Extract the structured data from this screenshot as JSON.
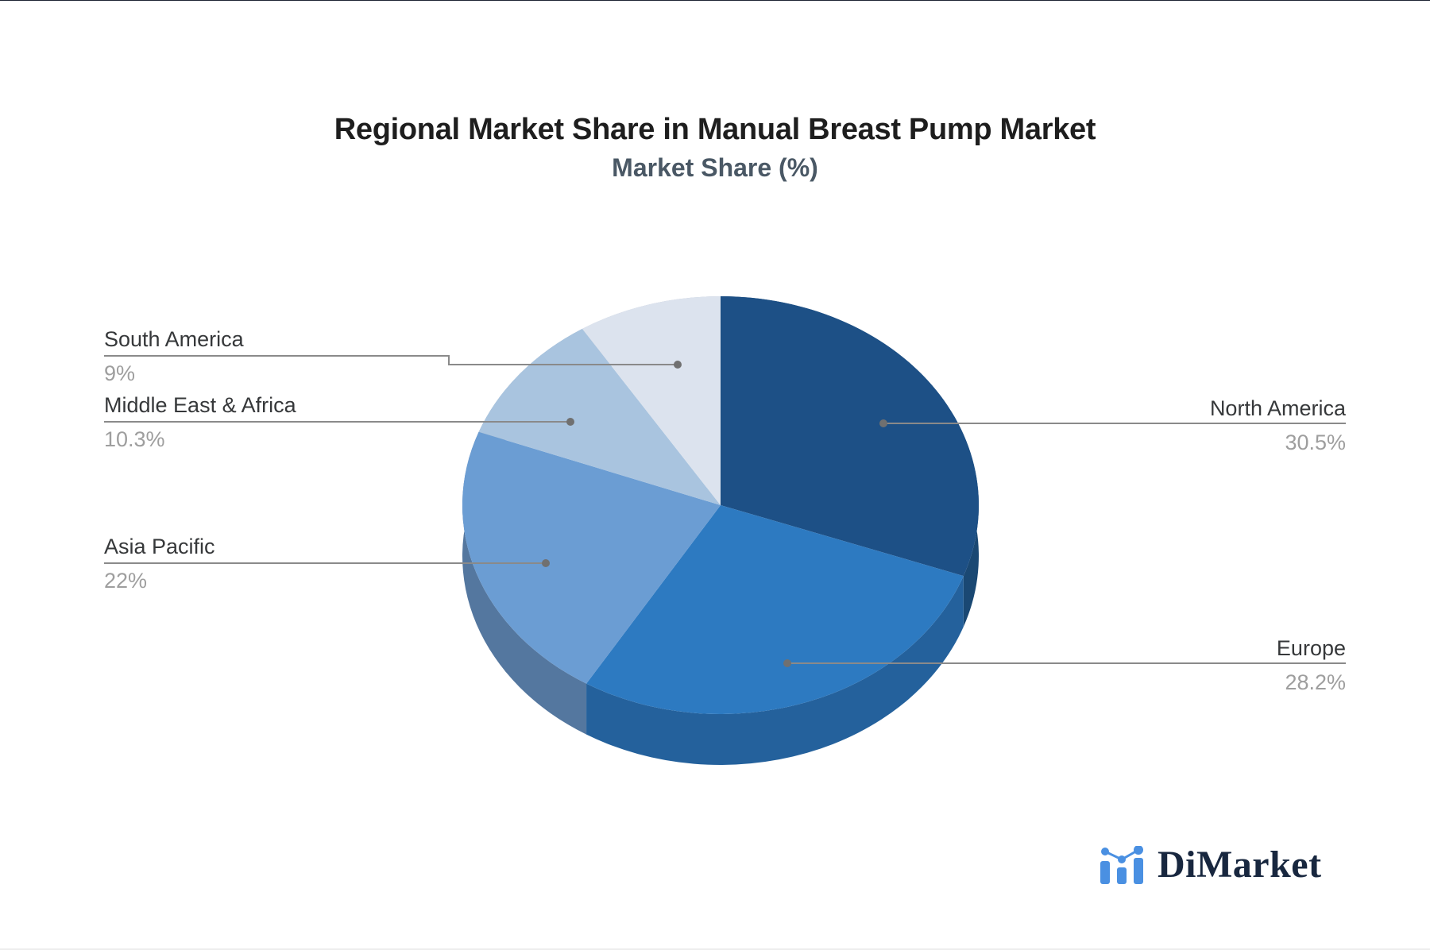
{
  "header": {
    "title": "Regional Market Share in Manual Breast Pump Market",
    "subtitle": "Market Share (%)"
  },
  "chart_data": {
    "type": "pie",
    "style": "3d",
    "title": "Regional Market Share in Manual Breast Pump Market",
    "subtitle": "Market Share (%)",
    "unit": "%",
    "start_angle_deg": 0,
    "direction": "clockwise",
    "legend_position": "none",
    "labels_layout": "leader-lines",
    "slices": [
      {
        "label": "North America",
        "value": 30.5,
        "display": "30.5%",
        "color": "#1d5086",
        "side_color": "#1a4873"
      },
      {
        "label": "Europe",
        "value": 28.2,
        "display": "28.2%",
        "color": "#2d7ac1",
        "side_color": "#24619c"
      },
      {
        "label": "Asia Pacific",
        "value": 22,
        "display": "22%",
        "color": "#6b9dd3",
        "side_color": "#54779f"
      },
      {
        "label": "Middle East & Africa",
        "value": 10.3,
        "display": "10.3%",
        "color": "#a9c4df",
        "side_color": "#8ba3ba"
      },
      {
        "label": "South America",
        "value": 9,
        "display": "9%",
        "color": "#dce3ee",
        "side_color": "#b4bcca"
      }
    ]
  },
  "colors": {
    "title_text": "#1e1e1e",
    "subtitle_text": "#4a5865",
    "label_text": "#36383a",
    "value_text": "#9e9e9e",
    "leader_line": "#8a8a8a",
    "leader_dot": "#707070",
    "logo_icon": "#4a90e2",
    "logo_text": "#18273f"
  },
  "branding": {
    "name": "DiMarket",
    "icon": "bar-line-chart-icon"
  }
}
